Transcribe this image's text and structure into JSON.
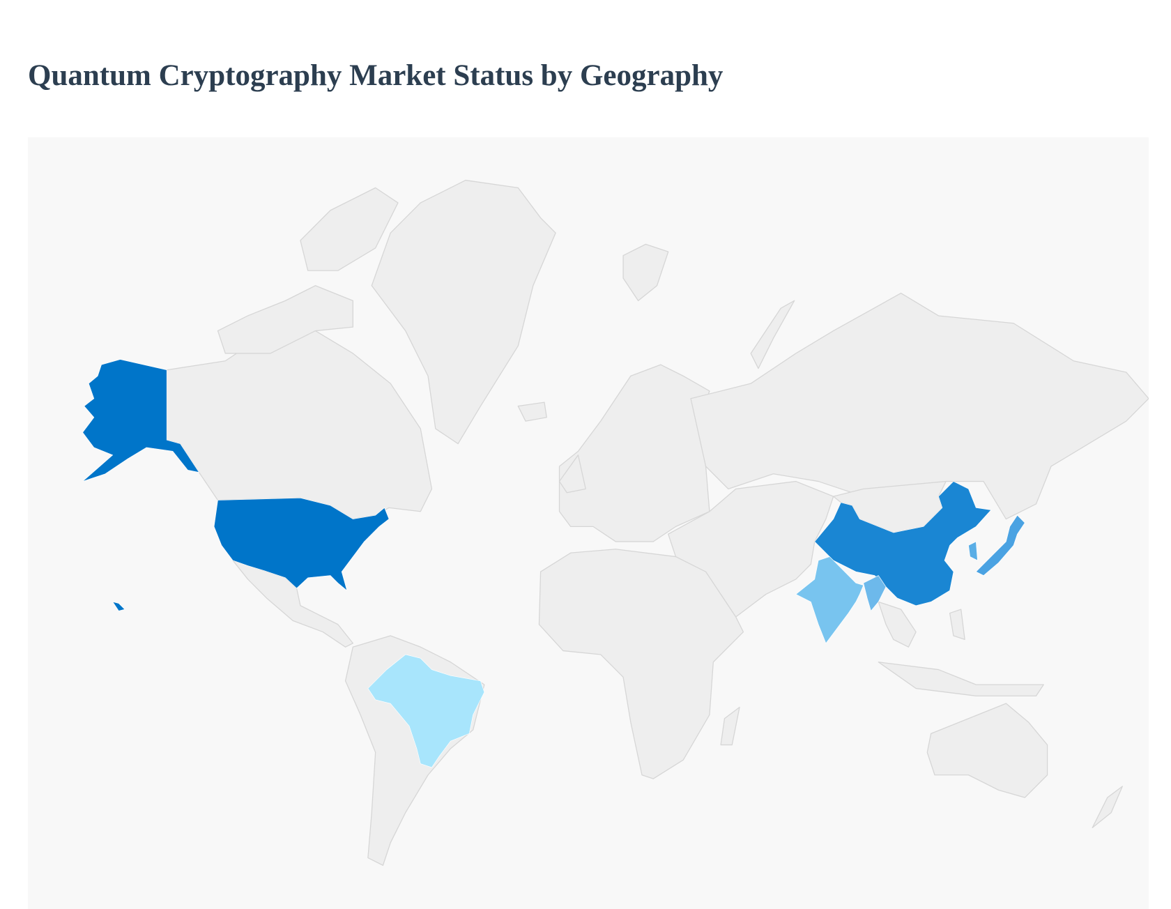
{
  "page": {
    "title": "Quantum Cryptography Market Status by Geography"
  },
  "chart_data": {
    "type": "choropleth",
    "title": "Quantum Cryptography Market Status by Geography",
    "base_land_color": "#eeeeee",
    "background_color": "#f8f8f8",
    "regions": [
      {
        "id": "USA",
        "color": "#0075c9"
      },
      {
        "id": "China",
        "color": "#1a86d3"
      },
      {
        "id": "Japan",
        "color": "#4aa2e2"
      },
      {
        "id": "South Korea",
        "color": "#5aaee6"
      },
      {
        "id": "India",
        "color": "#78c4ef"
      },
      {
        "id": "Myanmar",
        "color": "#6db9eb"
      },
      {
        "id": "Brazil",
        "color": "#a8e5fc"
      }
    ]
  }
}
